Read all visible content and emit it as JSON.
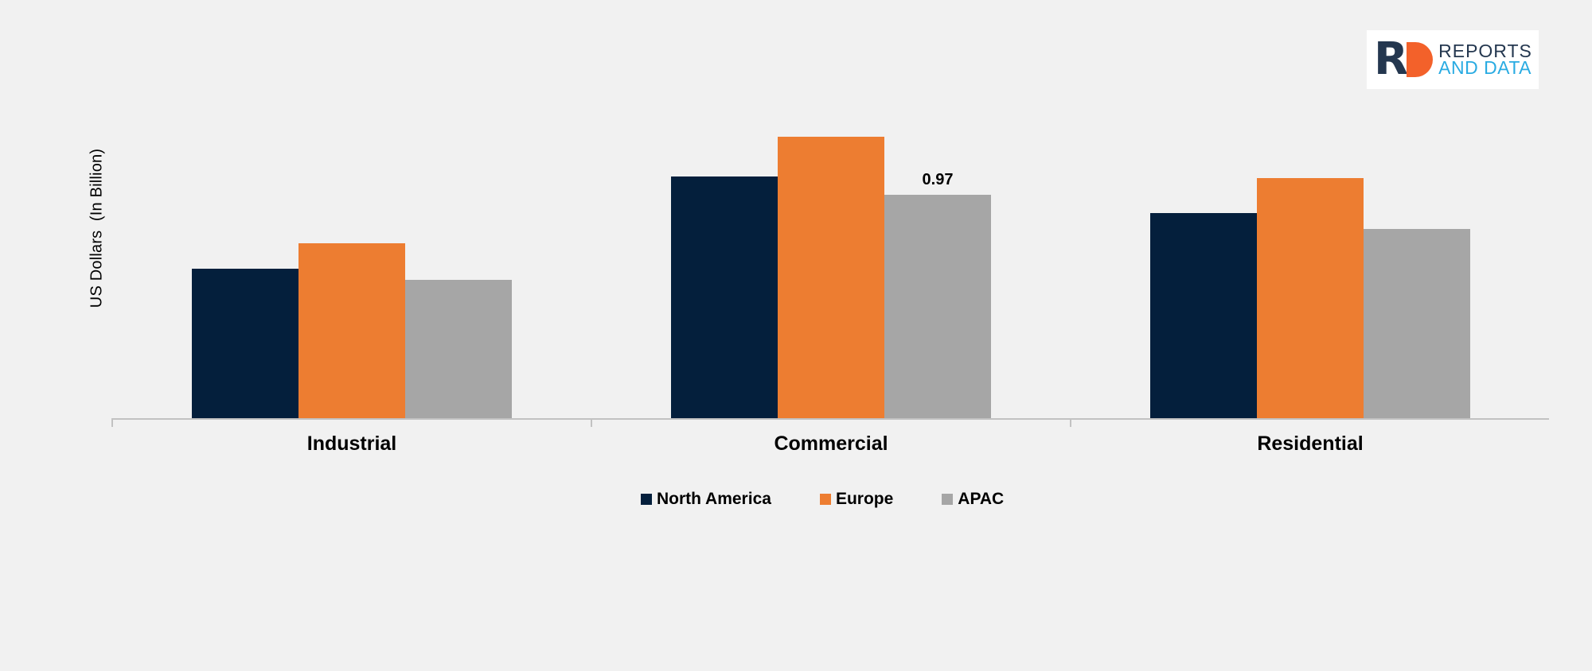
{
  "background_color": "#F1F1F1",
  "logo": {
    "mark_r": "R",
    "mark_r_color": "#24374F",
    "mark_d_color": "#F3612A",
    "line1": "REPORTS",
    "line2": "AND DATA",
    "line1_color": "#24374F",
    "line2_color": "#29ABE2",
    "card_color": "#FFFFFF"
  },
  "chart_data": {
    "type": "bar",
    "title": "",
    "xlabel": "",
    "ylabel": "US Dollars  (In Billion)",
    "categories": [
      "Industrial",
      "Commercial",
      "Residential"
    ],
    "series": [
      {
        "name": "North America",
        "color": "#041F3C",
        "values": [
          0.65,
          1.05,
          0.89
        ]
      },
      {
        "name": "Europe",
        "color": "#ED7D31",
        "values": [
          0.76,
          1.22,
          1.04
        ]
      },
      {
        "name": "APAC",
        "color": "#A6A6A6",
        "values": [
          0.6,
          0.97,
          0.82
        ]
      }
    ],
    "data_labels": [
      {
        "category_index": 1,
        "series_index": 2,
        "text": "0.97"
      }
    ],
    "ylim": [
      0,
      1.25
    ],
    "grid": false,
    "y_axis_ticks_visible": false,
    "legend_position": "bottom",
    "axis_color": "#C2C2C2"
  }
}
